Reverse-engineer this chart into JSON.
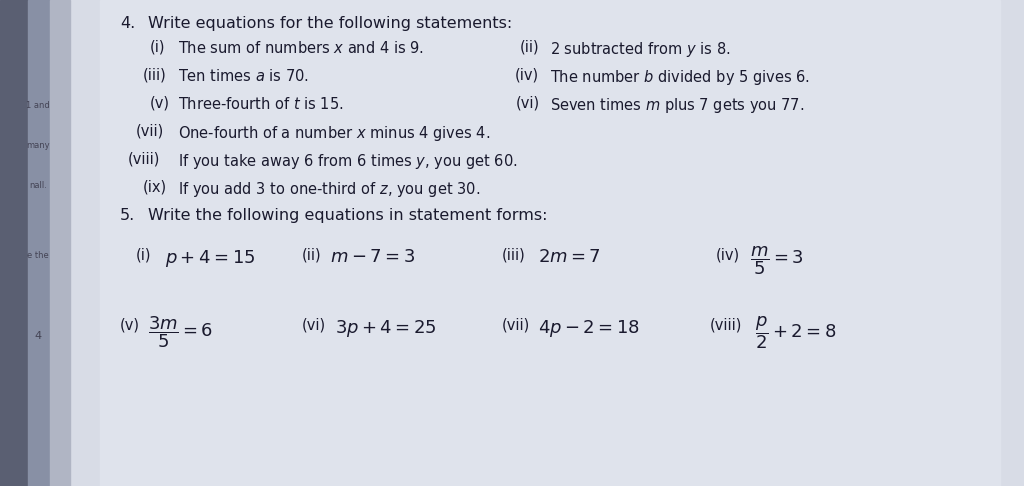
{
  "bg_color": "#c8cdd8",
  "page_color": "#dce0e8",
  "spine_color": "#7a7f8e",
  "text_color": "#1a1a2e",
  "title4": "4.",
  "heading4": "Write equations for the following statements:",
  "title5": "5.",
  "heading5": "Write the following equations in statement forms:",
  "items4_col1": [
    [
      "(i)",
      "The sum of numbers $x$ and 4 is 9."
    ],
    [
      "(iii)",
      "Ten times $a$ is 70."
    ],
    [
      "(v)",
      "Three-fourth of $t$ is 15."
    ],
    [
      "(vii)",
      "One-fourth of a number $x$ minus 4 gives 4."
    ],
    [
      "(viii)",
      "If you take away 6 from 6 times $y$, you get 60."
    ],
    [
      "(ix)",
      "If you add 3 to one-third of $z$, you get 30."
    ]
  ],
  "items4_col2": [
    [
      "(ii)",
      "2 subtracted from $y$ is 8."
    ],
    [
      "(iv)",
      "The number $b$ divided by 5 gives 6."
    ],
    [
      "(vi)",
      "Seven times $m$ plus 7 gets you 77."
    ]
  ],
  "row1_labels": [
    "(i)",
    "(ii)",
    "(iii)",
    "(iv)"
  ],
  "row1_exprs": [
    "$p + 4 = 15$",
    "$m - 7 = 3$",
    "$2m = 7$",
    "$\\dfrac{m}{5} = 3$"
  ],
  "row2_labels": [
    "(v)",
    "(vi)",
    "(vii)",
    "(viii)"
  ],
  "row2_exprs": [
    "$\\dfrac{3m}{5} = 6$",
    "$3p + 4 = 25$",
    "$4p - 2 = 18$",
    "$\\dfrac{p}{2} + 2 = 8$"
  ],
  "left_strip_colors": [
    "#8a8fa0",
    "#6b6f80",
    "#9095a8"
  ],
  "left_text": [
    "1 and",
    "many",
    "nall,",
    "e the",
    "4"
  ]
}
